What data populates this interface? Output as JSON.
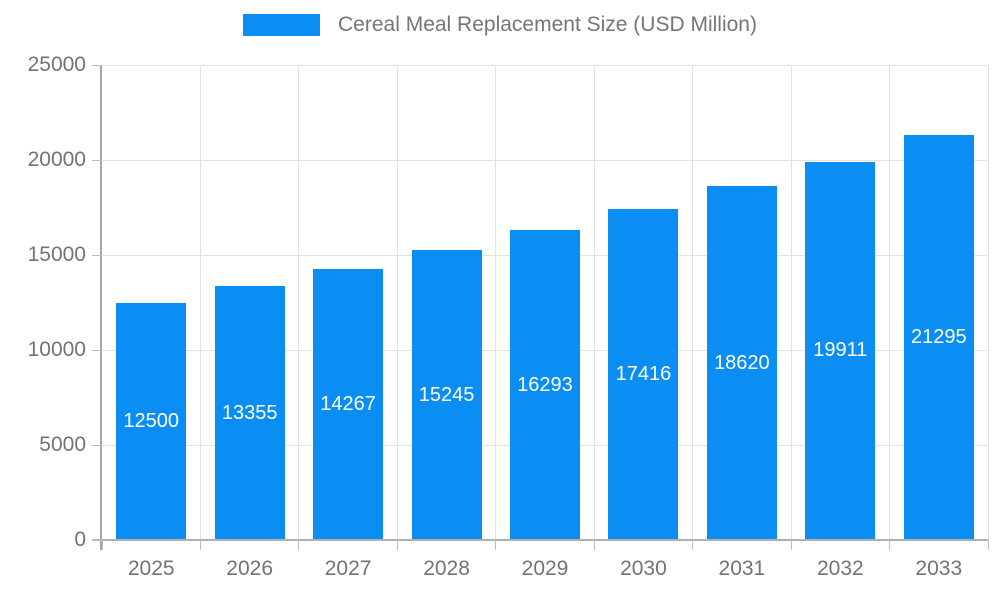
{
  "chart_data": {
    "type": "bar",
    "title": "Cereal Meal Replacement Size (USD Million)",
    "legend": [
      "Cereal Meal Replacement Size (USD Million)"
    ],
    "legend_position": "top",
    "categories": [
      "2025",
      "2026",
      "2027",
      "2028",
      "2029",
      "2030",
      "2031",
      "2032",
      "2033"
    ],
    "values": [
      12500,
      13355,
      14267,
      15245,
      16293,
      17416,
      18620,
      19911,
      21295
    ],
    "xlabel": "",
    "ylabel": "",
    "ylim": [
      0,
      25000
    ],
    "y_ticks": [
      "0",
      "5000",
      "10000",
      "15000",
      "20000",
      "25000"
    ],
    "grid": true,
    "bar_color": "#0A8EF4",
    "bar_label_color": "#FFFFFF",
    "axis_text_color": "#737373",
    "grid_color": "#E3E3E3"
  }
}
